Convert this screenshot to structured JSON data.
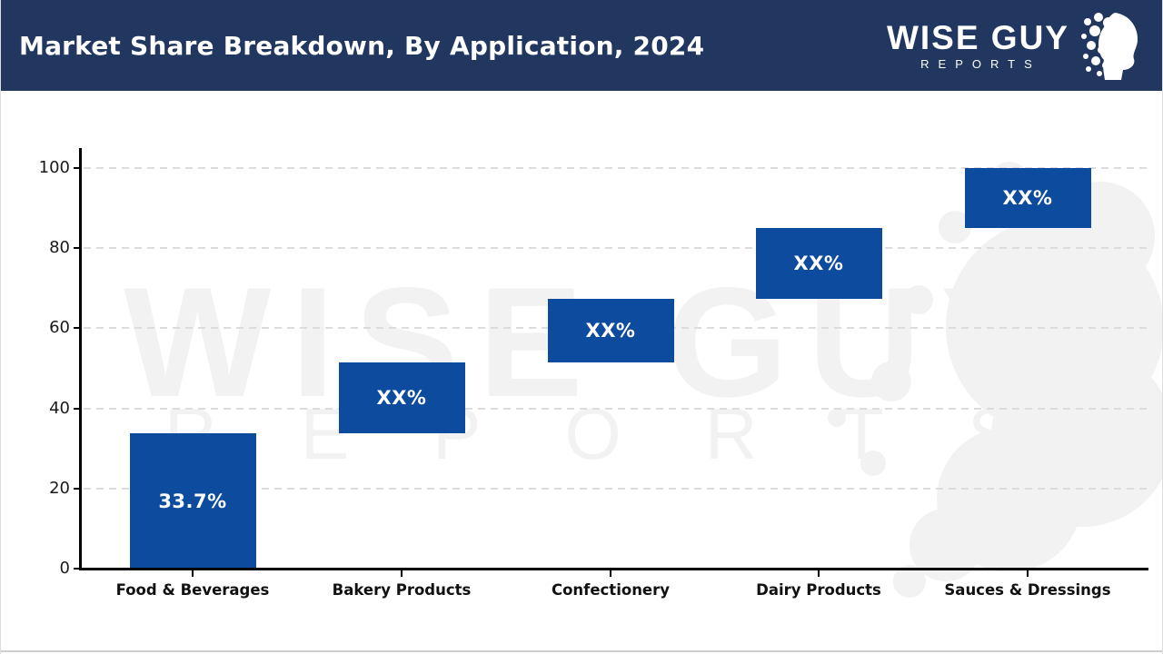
{
  "header": {
    "title": "Market Share Breakdown, By Application, 2024",
    "background_color": "#213760",
    "logo": {
      "line1": "WISE GUY",
      "line2": "REPORTS"
    }
  },
  "watermark": {
    "line1": "WISE GUY",
    "line2": "REPORTS"
  },
  "chart_data": {
    "type": "bar",
    "subtype": "waterfall-stacked-percentage",
    "title": "Market Share Breakdown, By Application, 2024",
    "categories": [
      "Food & Beverages",
      "Bakery Products",
      "Confectionery",
      "Dairy Products",
      "Sauces & Dressings"
    ],
    "segments": [
      {
        "category": "Food & Beverages",
        "start": 0,
        "end": 33.7,
        "label": "33.7%"
      },
      {
        "category": "Bakery Products",
        "start": 33.7,
        "end": 51.5,
        "label": "XX%"
      },
      {
        "category": "Confectionery",
        "start": 51.5,
        "end": 67.3,
        "label": "XX%"
      },
      {
        "category": "Dairy Products",
        "start": 67.3,
        "end": 85.0,
        "label": "XX%"
      },
      {
        "category": "Sauces & Dressings",
        "start": 85.0,
        "end": 100.0,
        "label": "XX%"
      }
    ],
    "xlabel": "",
    "ylabel": "",
    "ylim": [
      0,
      100
    ],
    "yticks": [
      0,
      20,
      40,
      60,
      80,
      100
    ],
    "grid": "dashed-horizontal",
    "legend": "none",
    "bar_color": "#0c4b9e",
    "value_label_color": "#ffffff"
  }
}
